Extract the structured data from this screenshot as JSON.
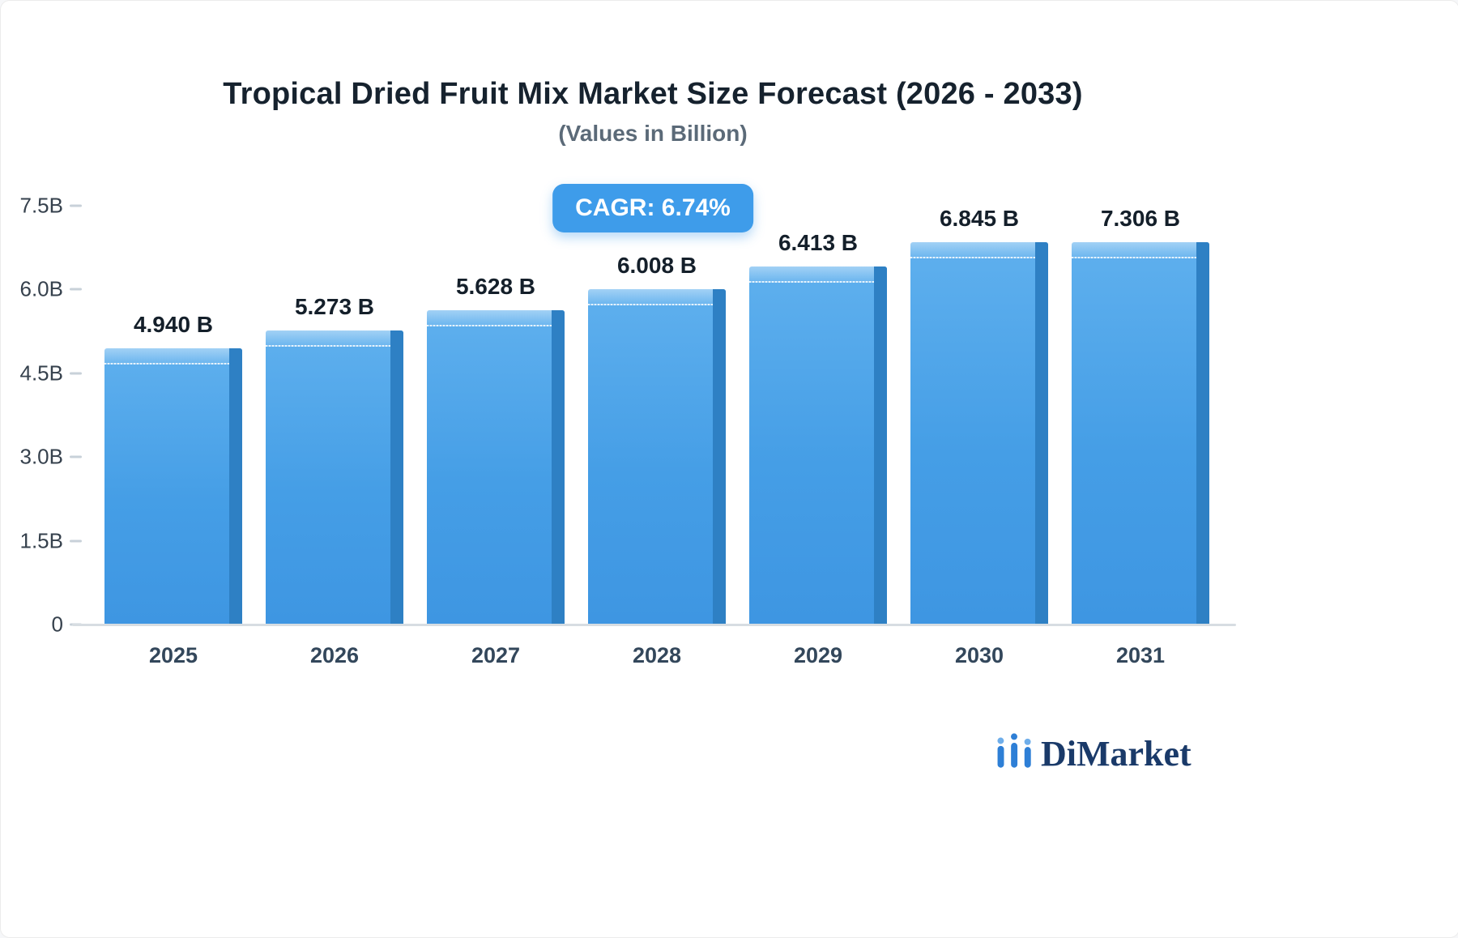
{
  "header": {
    "title": "Tropical Dried Fruit Mix Market Size Forecast (2026 - 2033)",
    "subtitle": "(Values in Billion)",
    "cagr_badge": "CAGR: 6.74%"
  },
  "footer": {
    "brand": "DiMarket"
  },
  "colors": {
    "bar_main": "#459ee6",
    "bar_side": "#2e80c4",
    "badge_bg": "#3e9cea",
    "axis_line": "#d7dde2",
    "brand_blue": "#2e7fd6",
    "brand_navy": "#1a3a69"
  },
  "chart_data": {
    "type": "bar",
    "title": "Tropical Dried Fruit Mix Market Size Forecast (2026 - 2033)",
    "subtitle": "(Values in Billion)",
    "annotation": "CAGR: 6.74%",
    "categories": [
      "2025",
      "2026",
      "2027",
      "2028",
      "2029",
      "2030",
      "2031"
    ],
    "values": [
      4.94,
      5.273,
      5.628,
      6.008,
      6.413,
      6.845,
      7.306
    ],
    "labels": [
      "4.940 B",
      "5.273 B",
      "5.628 B",
      "6.008 B",
      "6.413 B",
      "6.845 B",
      "7.306 B"
    ],
    "xlabel": "",
    "ylabel": "",
    "ylim": [
      0,
      7.5
    ],
    "grid": false,
    "legend": false,
    "yticks": [
      {
        "label": "7.5B",
        "value": 7.5
      },
      {
        "label": "6.0B",
        "value": 6.0
      },
      {
        "label": "4.5B",
        "value": 4.5
      },
      {
        "label": "3.0B",
        "value": 3.0
      },
      {
        "label": "1.5B",
        "value": 1.5
      },
      {
        "label": "0",
        "value": 0
      }
    ]
  }
}
